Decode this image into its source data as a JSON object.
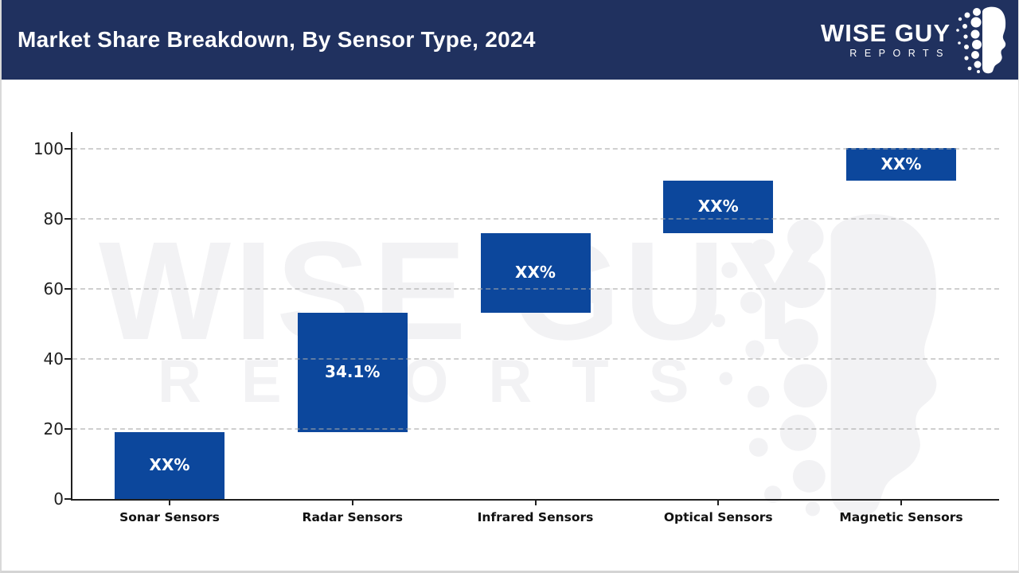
{
  "header": {
    "title": "Market Share Breakdown, By Sensor Type, 2024",
    "bg_color": "#20315f",
    "logo": {
      "line1": "WISE GUY",
      "line2": "REPORTS"
    }
  },
  "watermark": {
    "line1": "WISE GUY",
    "line2": "REPORTS"
  },
  "chart_data": {
    "type": "bar",
    "subtype": "waterfall",
    "title": "Market Share Breakdown, By Sensor Type, 2024",
    "categories": [
      "Sonar Sensors",
      "Radar Sensors",
      "Infrared Sensors",
      "Optical Sensors",
      "Magnetic Sensors"
    ],
    "segments": [
      {
        "category": "Sonar Sensors",
        "start": 0,
        "end": 19.1,
        "label": "XX%"
      },
      {
        "category": "Radar Sensors",
        "start": 19.1,
        "end": 53.2,
        "label": "34.1%"
      },
      {
        "category": "Infrared Sensors",
        "start": 53.2,
        "end": 75.9,
        "label": "XX%"
      },
      {
        "category": "Optical Sensors",
        "start": 75.9,
        "end": 90.9,
        "label": "XX%"
      },
      {
        "category": "Magnetic Sensors",
        "start": 90.9,
        "end": 100.2,
        "label": "XX%"
      }
    ],
    "xlabel": "",
    "ylabel": "",
    "ylim": [
      0,
      100
    ],
    "yticks": [
      0,
      20,
      40,
      60,
      80,
      100
    ],
    "grid": "horizontal dashed, drawn over bars",
    "legend": "none",
    "bar_color": "#0c479c",
    "bar_label_color": "#ffffff",
    "axis_color": "#1f1f1f"
  }
}
